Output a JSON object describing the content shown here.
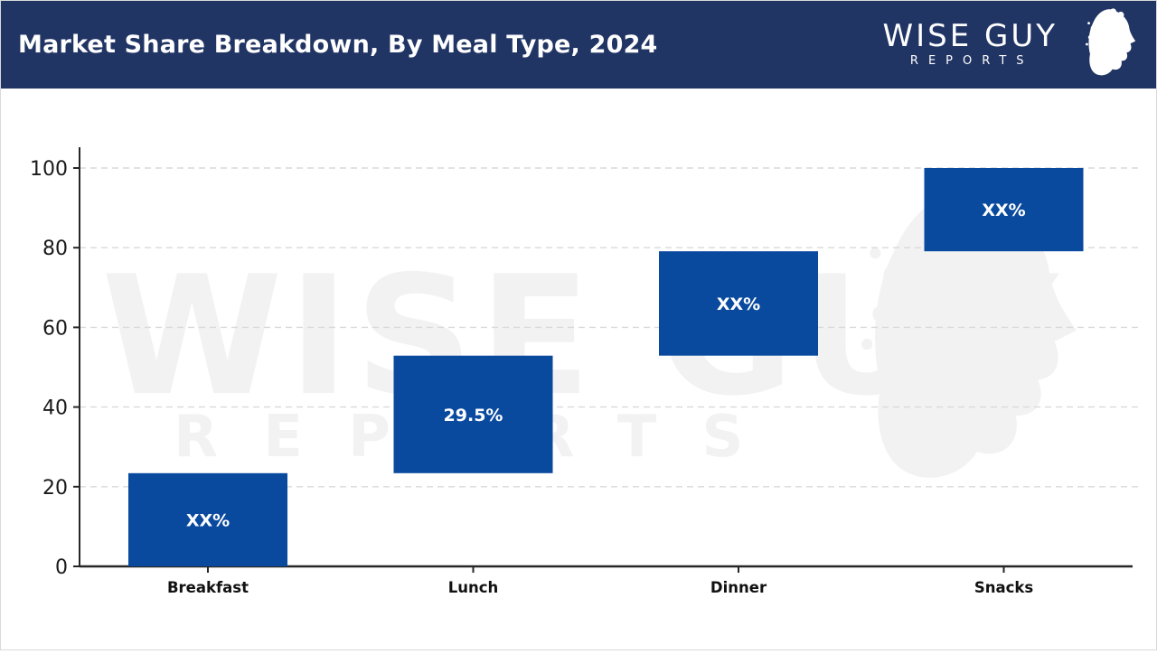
{
  "header": {
    "title": "Market Share Breakdown, By Meal Type, 2024",
    "logo": {
      "line1": "WISE GUY",
      "line2": "REPORTS"
    }
  },
  "watermark": {
    "line1": "WISE GUY",
    "line2": "REPORTS"
  },
  "colors": {
    "header_bg": "#213564",
    "bar": "#0a4a9e",
    "bar_label": "#ffffff",
    "axis": "#262626",
    "grid": "#d9d9d9",
    "tick_label": "#1a1a1a",
    "watermark": "#f2f2f2"
  },
  "chart_data": {
    "type": "bar",
    "subtype": "floating-segment-waterfall",
    "title": "Market Share Breakdown, By Meal Type, 2024",
    "categories": [
      "Breakfast",
      "Lunch",
      "Dinner",
      "Snacks"
    ],
    "segments": [
      {
        "category": "Breakfast",
        "from": 0,
        "to": 23.4,
        "value": 23.4,
        "label": "XX%"
      },
      {
        "category": "Lunch",
        "from": 23.4,
        "to": 52.9,
        "value": 29.5,
        "label": "29.5%"
      },
      {
        "category": "Dinner",
        "from": 52.9,
        "to": 79.1,
        "value": 26.2,
        "label": "XX%"
      },
      {
        "category": "Snacks",
        "from": 79.1,
        "to": 100,
        "value": 20.9,
        "label": "XX%"
      }
    ],
    "xlabel": "",
    "ylabel": "",
    "yticks": [
      0,
      20,
      40,
      60,
      80,
      100
    ],
    "ylim": [
      0,
      100
    ],
    "grid": "horizontal-dashed",
    "legend": "none"
  }
}
